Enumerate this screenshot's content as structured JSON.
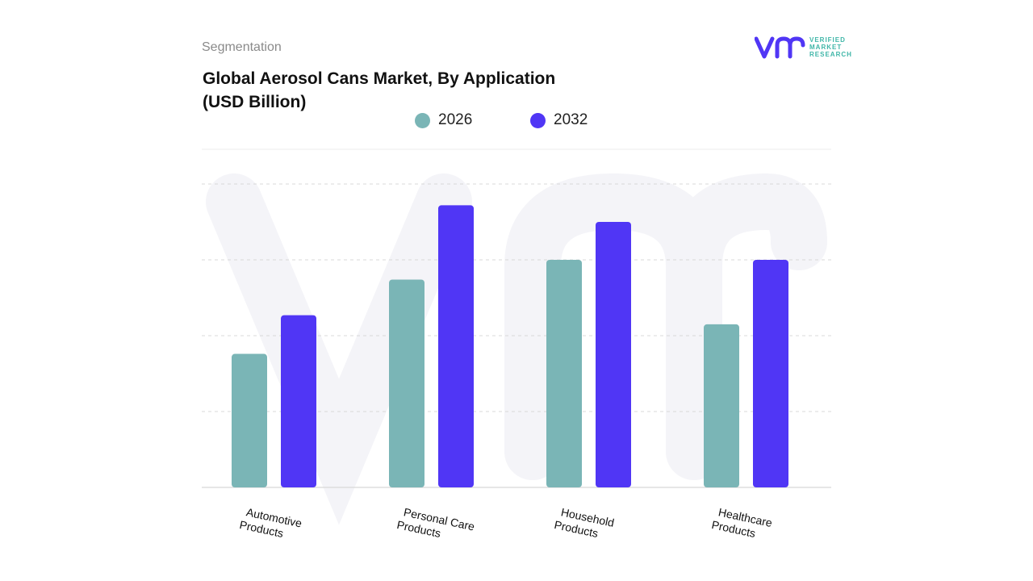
{
  "header": {
    "segment_label": "Segmentation",
    "title": "Global Aerosol Cans Market, By Application (USD Billion)"
  },
  "logo": {
    "lines": [
      "VERIFIED",
      "MARKET",
      "RESEARCH"
    ],
    "icon": "vmr-logo-icon"
  },
  "colors": {
    "series_2026": "#7ab5b6",
    "series_2032": "#5036f5",
    "grid": "#d9d9d9",
    "watermark": "#f4f4f8"
  },
  "chart_data": {
    "type": "bar",
    "title": "Global Aerosol Cans Market, By Application (USD Billion)",
    "categories": [
      [
        "Automotive",
        "Products"
      ],
      [
        "Personal Care",
        "Products"
      ],
      [
        "Household",
        "Products"
      ],
      [
        "Healthcare",
        "Products"
      ]
    ],
    "series": [
      {
        "name": "2026",
        "values": [
          1.76,
          2.74,
          3.0,
          2.15
        ]
      },
      {
        "name": "2032",
        "values": [
          2.27,
          3.72,
          3.5,
          3.0
        ]
      }
    ],
    "ylim": [
      0,
      4
    ],
    "grid": true,
    "legend": "top-center",
    "xlabel": "",
    "ylabel": ""
  }
}
